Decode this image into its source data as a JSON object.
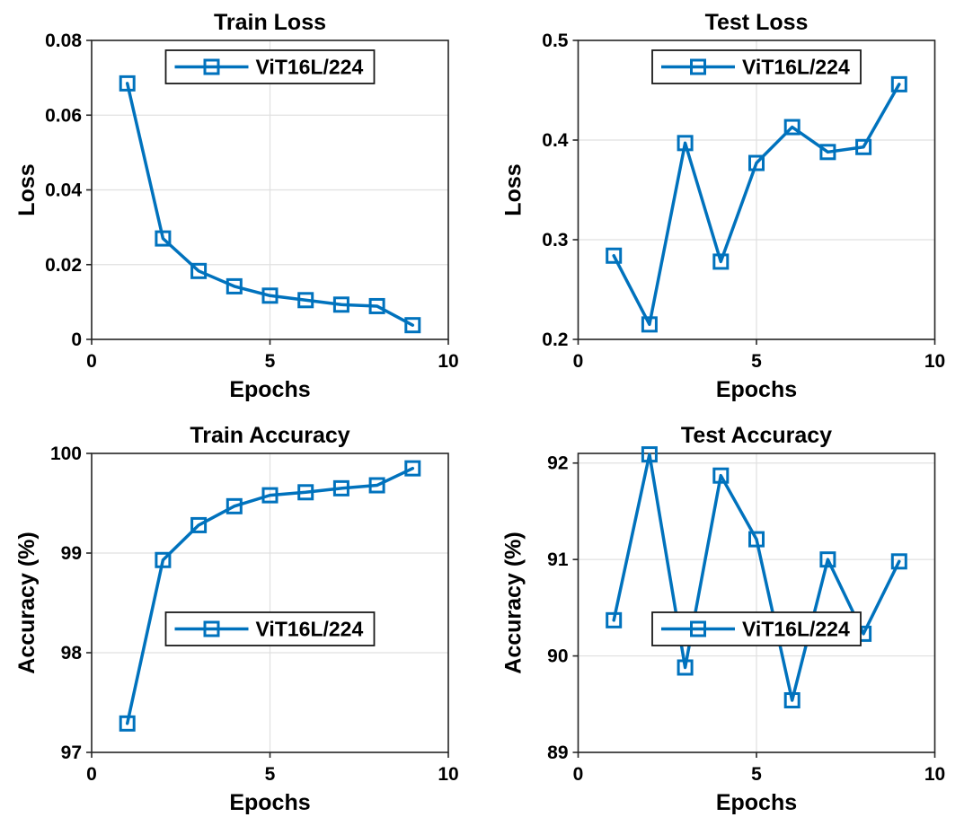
{
  "figure": {
    "background": "#ffffff",
    "rows": 2,
    "cols": 2
  },
  "colors": {
    "line": "#0072BD",
    "grid": "#e0e0e0",
    "axis": "#262626",
    "text": "#000000",
    "legend_border": "#1a1a1a",
    "legend_background": "#ffffff"
  },
  "chart_data": [
    {
      "id": "train-loss",
      "type": "line",
      "title": "Train Loss",
      "xlabel": "Epochs",
      "ylabel": "Loss",
      "series": [
        {
          "name": "ViT16L/224",
          "x": [
            1,
            2,
            3,
            4,
            5,
            6,
            7,
            8,
            9
          ],
          "y": [
            0.0685,
            0.027,
            0.0183,
            0.0142,
            0.0117,
            0.0105,
            0.0093,
            0.0089,
            0.0038
          ]
        }
      ],
      "xlim": [
        0,
        10
      ],
      "ylim": [
        0,
        0.08
      ],
      "xticks": [
        0,
        5,
        10
      ],
      "xtick_labels": [
        "0",
        "5",
        "10"
      ],
      "yticks": [
        0,
        0.02,
        0.04,
        0.06,
        0.08
      ],
      "ytick_labels": [
        "0",
        "0.02",
        "0.04",
        "0.06",
        "0.08"
      ],
      "grid": true,
      "marker": "open-square",
      "legend": {
        "label": "ViT16L/224",
        "position": "top-center"
      }
    },
    {
      "id": "test-loss",
      "type": "line",
      "title": "Test Loss",
      "xlabel": "Epochs",
      "ylabel": "Loss",
      "series": [
        {
          "name": "ViT16L/224",
          "x": [
            1,
            2,
            3,
            4,
            5,
            6,
            7,
            8,
            9
          ],
          "y": [
            0.284,
            0.215,
            0.397,
            0.278,
            0.377,
            0.413,
            0.388,
            0.393,
            0.456
          ]
        }
      ],
      "xlim": [
        0,
        10
      ],
      "ylim": [
        0.2,
        0.5
      ],
      "xticks": [
        0,
        5,
        10
      ],
      "xtick_labels": [
        "0",
        "5",
        "10"
      ],
      "yticks": [
        0.2,
        0.3,
        0.4,
        0.5
      ],
      "ytick_labels": [
        "0.2",
        "0.3",
        "0.4",
        "0.5"
      ],
      "grid": true,
      "marker": "open-square",
      "legend": {
        "label": "ViT16L/224",
        "position": "top-center"
      }
    },
    {
      "id": "train-accuracy",
      "type": "line",
      "title": "Train Accuracy",
      "xlabel": "Epochs",
      "ylabel": "Accuracy (%)",
      "series": [
        {
          "name": "ViT16L/224",
          "x": [
            1,
            2,
            3,
            4,
            5,
            6,
            7,
            8,
            9
          ],
          "y": [
            97.29,
            98.93,
            99.28,
            99.47,
            99.58,
            99.61,
            99.65,
            99.68,
            99.85
          ]
        }
      ],
      "xlim": [
        0,
        10
      ],
      "ylim": [
        97,
        100
      ],
      "xticks": [
        0,
        5,
        10
      ],
      "xtick_labels": [
        "0",
        "5",
        "10"
      ],
      "yticks": [
        97,
        98,
        99,
        100
      ],
      "ytick_labels": [
        "97",
        "98",
        "99",
        "100"
      ],
      "grid": true,
      "marker": "open-square",
      "legend": {
        "label": "ViT16L/224",
        "position": "middle-center"
      }
    },
    {
      "id": "test-accuracy",
      "type": "line",
      "title": "Test Accuracy",
      "xlabel": "Epochs",
      "ylabel": "Accuracy (%)",
      "series": [
        {
          "name": "ViT16L/224",
          "x": [
            1,
            2,
            3,
            4,
            5,
            6,
            7,
            8,
            9
          ],
          "y": [
            90.37,
            92.09,
            89.88,
            91.87,
            91.21,
            89.54,
            91.0,
            90.23,
            90.98
          ]
        }
      ],
      "xlim": [
        0,
        10
      ],
      "ylim": [
        89,
        92.1
      ],
      "xticks": [
        0,
        5,
        10
      ],
      "xtick_labels": [
        "0",
        "5",
        "10"
      ],
      "yticks": [
        89,
        90,
        91,
        92
      ],
      "ytick_labels": [
        "89",
        "90",
        "91",
        "92"
      ],
      "grid": true,
      "marker": "open-square",
      "legend": {
        "label": "ViT16L/224",
        "position": "middle-center"
      }
    }
  ]
}
